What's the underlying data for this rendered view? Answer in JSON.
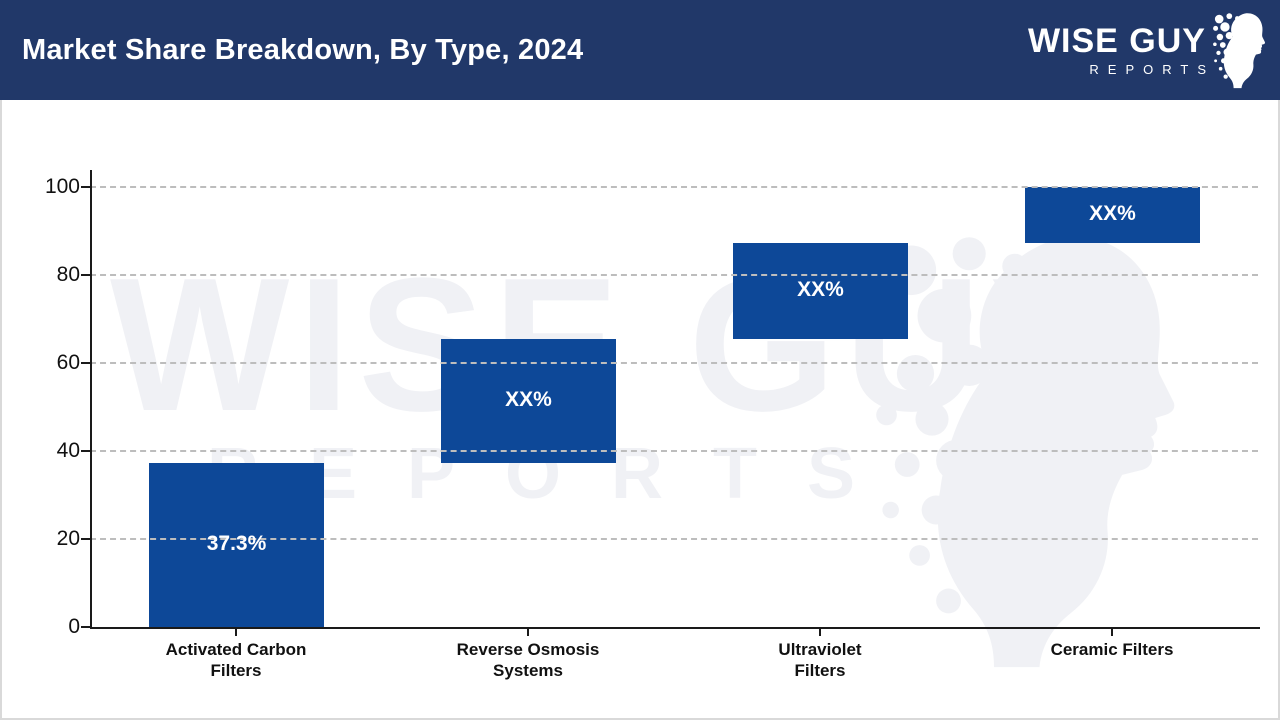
{
  "header": {
    "title": "Market Share Breakdown, By Type, 2024",
    "logo": {
      "line1": "WISE GUY",
      "line2": "REPORTS"
    }
  },
  "watermark": {
    "line1": "WISE GUY",
    "line2": "REPORTS"
  },
  "chart_data": {
    "type": "bar",
    "variant": "waterfall-stacked-segments",
    "title": "Market Share Breakdown, By Type, 2024",
    "xlabel": "",
    "ylabel": "",
    "ylim": [
      0,
      100
    ],
    "yticks": [
      0,
      20,
      40,
      60,
      80,
      100
    ],
    "grid": "horizontal-dashed",
    "legend": "none",
    "bar_color": "#0d4898",
    "bar_label_color": "#ffffff",
    "bars": [
      {
        "category_lines": [
          "Activated Carbon",
          "Filters"
        ],
        "start": 0,
        "end": 37.3,
        "label": "37.3%"
      },
      {
        "category_lines": [
          "Reverse Osmosis",
          "Systems"
        ],
        "start": 37.3,
        "end": 65.5,
        "label": "XX%"
      },
      {
        "category_lines": [
          "Ultraviolet",
          "Filters"
        ],
        "start": 65.5,
        "end": 87.3,
        "label": "XX%"
      },
      {
        "category_lines": [
          "Ceramic Filters"
        ],
        "start": 87.3,
        "end": 100,
        "label": "XX%"
      }
    ]
  },
  "colors": {
    "header_bg": "#213869",
    "bar": "#0d4898",
    "axis": "#1a1a1a",
    "gridline": "#bdbdbd",
    "watermark": "#f0f1f5"
  }
}
